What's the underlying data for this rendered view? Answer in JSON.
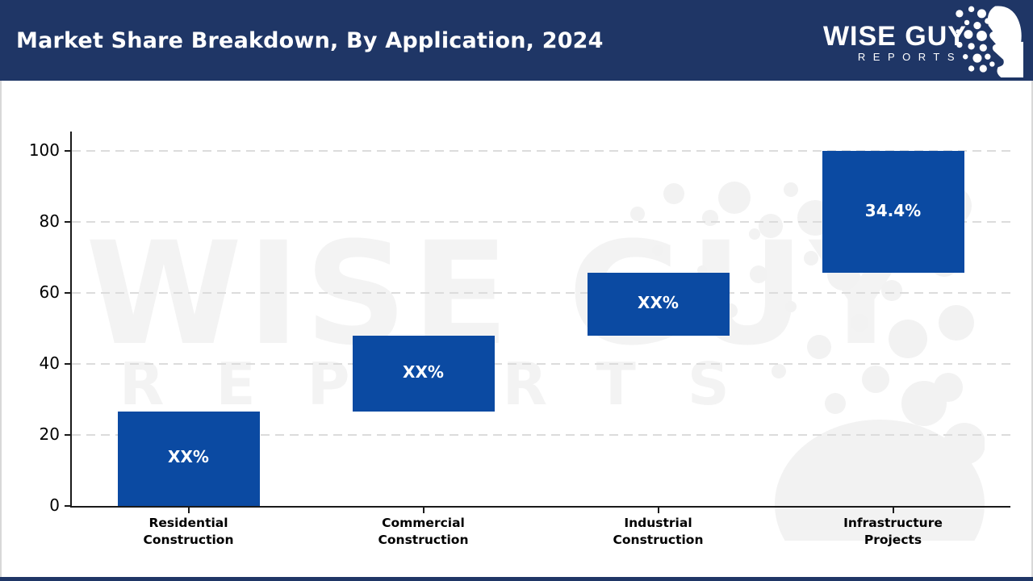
{
  "header": {
    "title": "Market Share Breakdown, By Application, 2024",
    "logo": {
      "brand_top": "WISE GUY",
      "brand_bottom": "REPORTS"
    },
    "background_color": "#1f3666"
  },
  "watermark": {
    "line1": "WISE GUY",
    "line2": "REPORTS"
  },
  "chart_data": {
    "type": "bar",
    "subtype": "waterfall",
    "title": "Market Share Breakdown, By Application, 2024",
    "xlabel": "",
    "ylabel": "",
    "categories": [
      "Residential Construction",
      "Commercial Construction",
      "Industrial Construction",
      "Infrastructure Projects"
    ],
    "segments": [
      {
        "category_lines": [
          "Residential",
          "Construction"
        ],
        "start": 0,
        "end": 26.6,
        "label": "XX%"
      },
      {
        "category_lines": [
          "Commercial",
          "Construction"
        ],
        "start": 26.6,
        "end": 48.0,
        "label": "XX%"
      },
      {
        "category_lines": [
          "Industrial",
          "Construction"
        ],
        "start": 48.0,
        "end": 65.6,
        "label": "XX%"
      },
      {
        "category_lines": [
          "Infrastructure",
          "Projects"
        ],
        "start": 65.6,
        "end": 100.0,
        "label": "34.4%",
        "value": 34.4
      }
    ],
    "y_axis": {
      "min": 0,
      "max": 100,
      "ticks": [
        0,
        20,
        40,
        60,
        80,
        100
      ]
    },
    "grid": true,
    "grid_style": "dashed",
    "gridline_color": "#dcdcdc",
    "bar_color": "#0b4aa2",
    "bar_label_color": "#ffffff",
    "legend": "none"
  }
}
